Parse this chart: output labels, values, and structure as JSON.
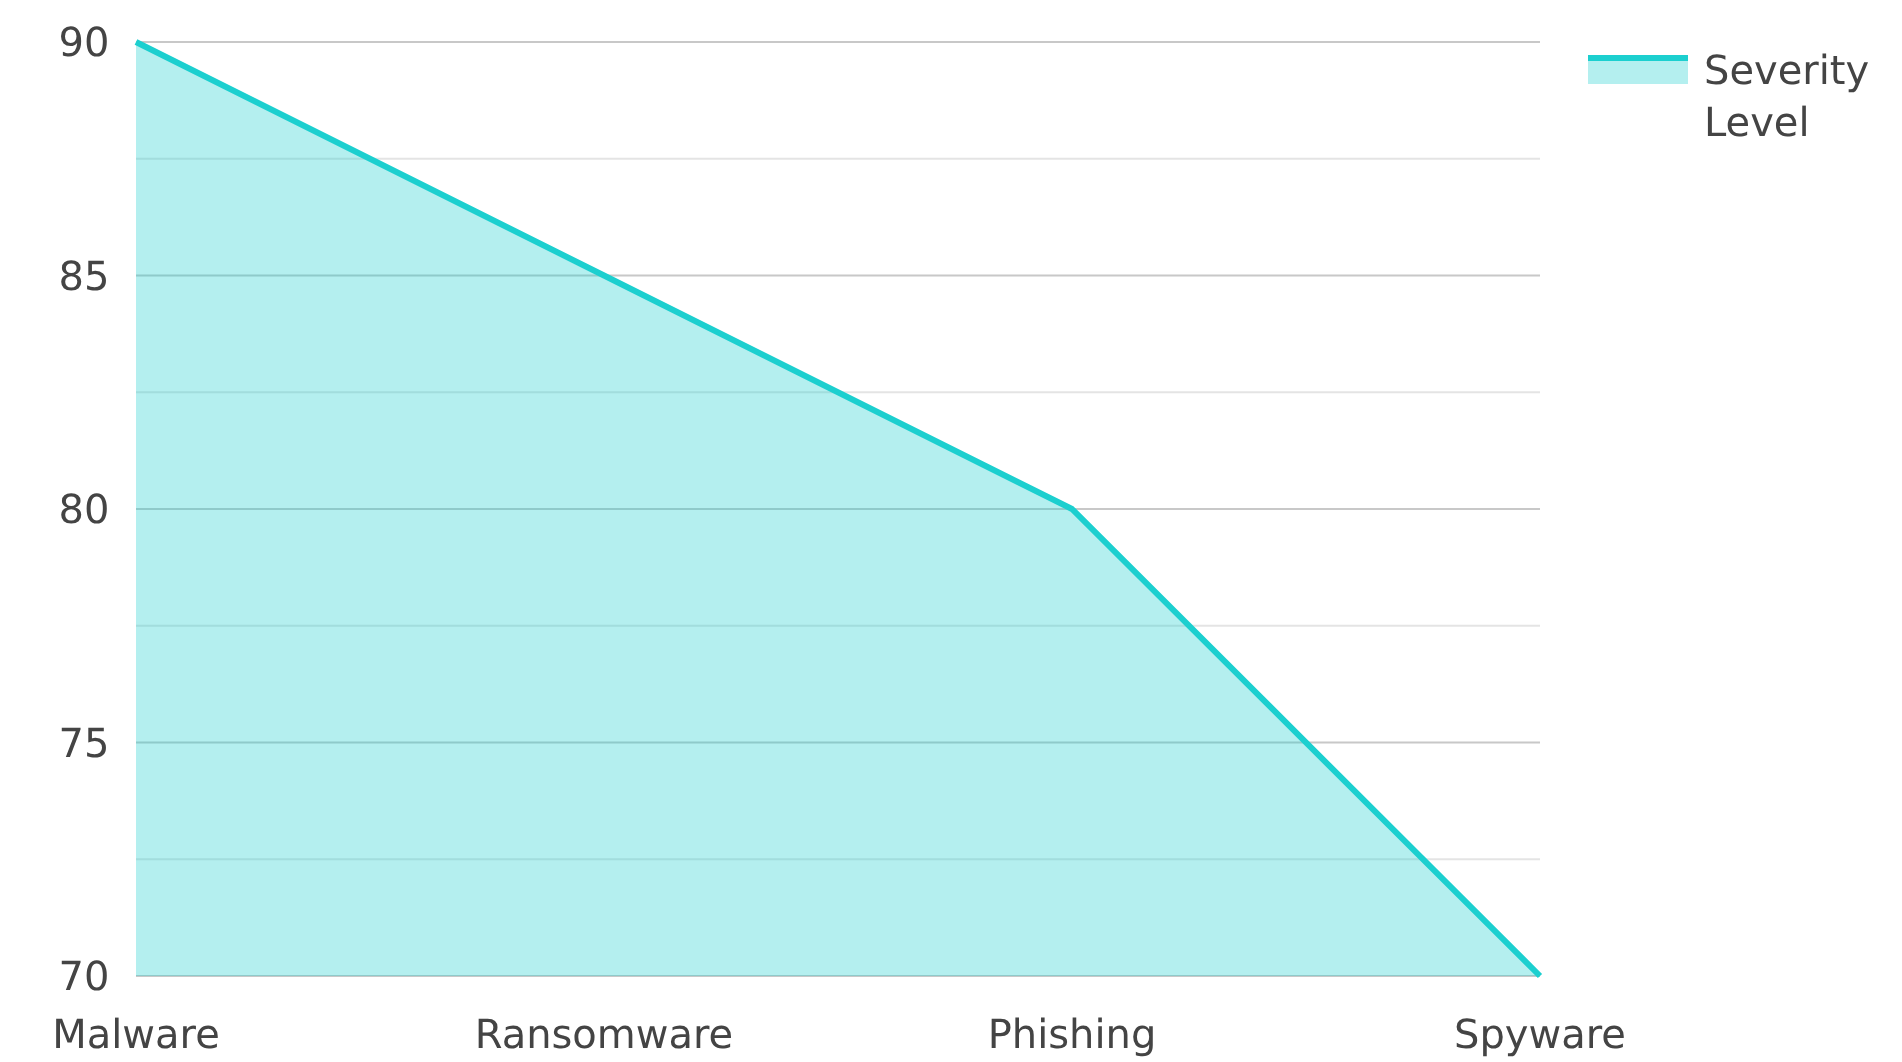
{
  "chart_data": {
    "type": "area",
    "categories": [
      "Malware",
      "Ransomware",
      "Phishing",
      "Spyware"
    ],
    "series": [
      {
        "name": "Severity Level",
        "color": "#1ccfcf",
        "values": [
          90,
          85,
          80,
          70
        ]
      }
    ],
    "ylim": [
      70,
      90
    ],
    "yticks": [
      70,
      {
        "value": 72.5,
        "label": null
      },
      75,
      {
        "value": 77.5,
        "label": null
      },
      80,
      {
        "value": 82.5,
        "label": null
      },
      85,
      {
        "value": 87.5,
        "label": null
      },
      90
    ],
    "grid": "y",
    "legend": "top right"
  }
}
